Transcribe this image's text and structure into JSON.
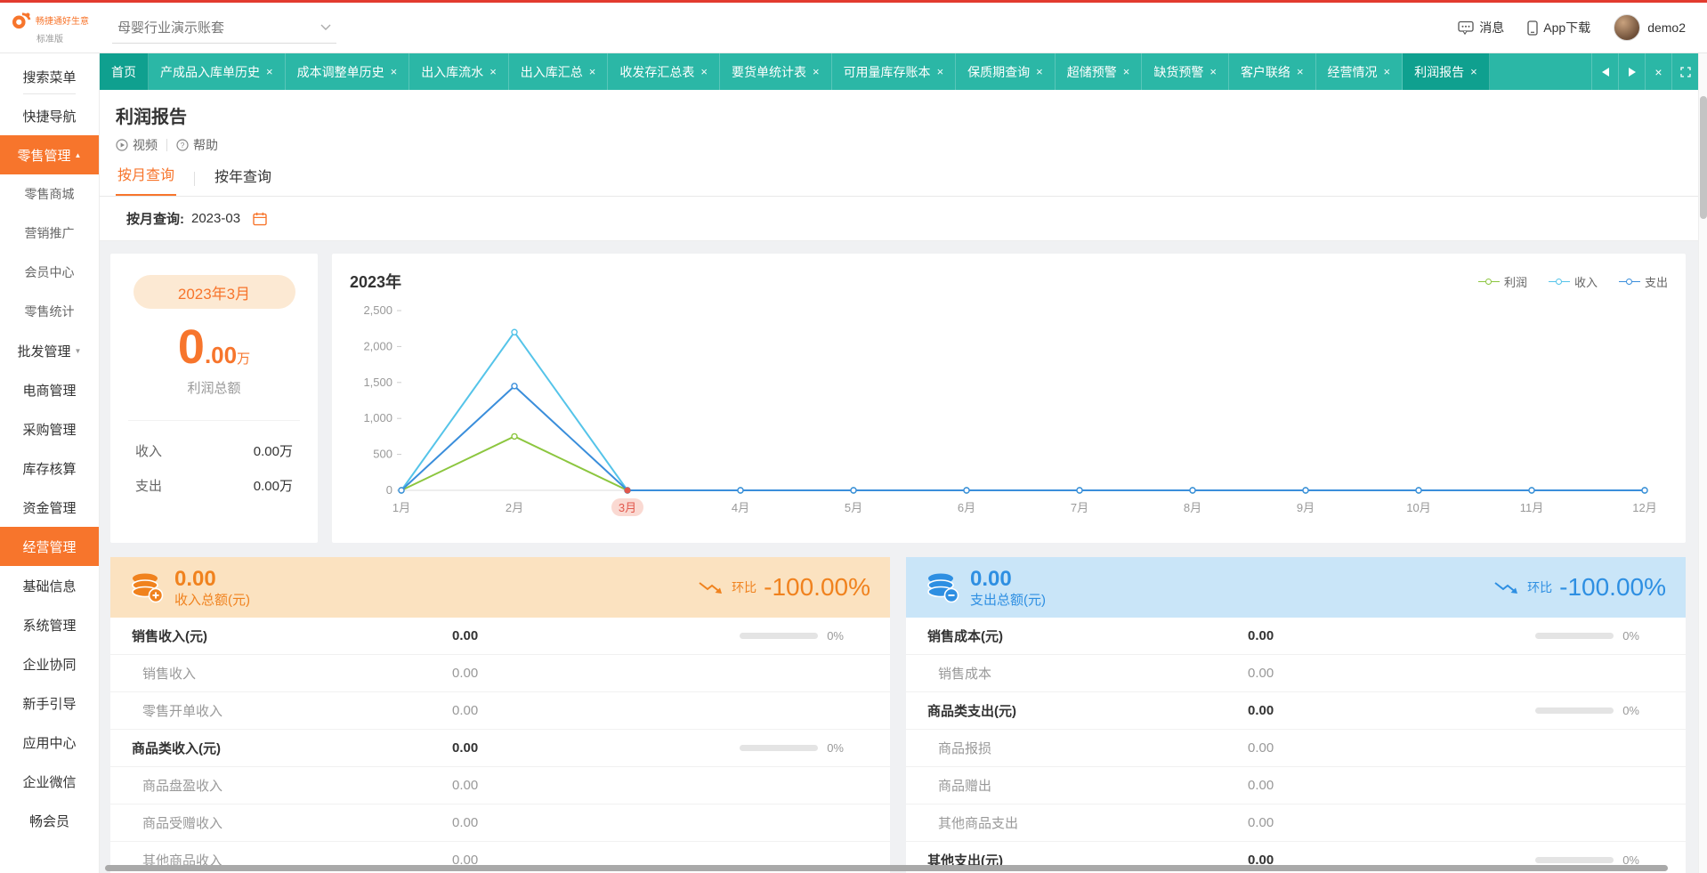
{
  "icons": {
    "close": "×",
    "caret_up": "▲",
    "caret_down": "▼"
  },
  "topbar": {
    "brand": "畅捷通好生意",
    "edition": "标准版",
    "account": "母婴行业演示账套",
    "messages": "消息",
    "app_download": "App下载",
    "username": "demo2"
  },
  "tabbar": {
    "home": "首页",
    "active": "利润报告",
    "tabs": [
      "产成品入库单历史",
      "成本调整单历史",
      "出入库流水",
      "出入库汇总",
      "收发存汇总表",
      "要货单统计表",
      "可用量库存账本",
      "保质期查询",
      "超储预警",
      "缺货预警",
      "客户联络",
      "经营情况",
      "利润报告"
    ]
  },
  "sidebar": {
    "items": [
      {
        "label": "搜索菜单",
        "kind": "top"
      },
      {
        "label": "快捷导航",
        "kind": "top"
      },
      {
        "label": "零售管理",
        "kind": "group-active",
        "arrow": "up"
      },
      {
        "label": "零售商城",
        "kind": "sub"
      },
      {
        "label": "营销推广",
        "kind": "sub"
      },
      {
        "label": "会员中心",
        "kind": "sub"
      },
      {
        "label": "零售统计",
        "kind": "sub"
      },
      {
        "label": "批发管理",
        "kind": "group",
        "arrow": "down"
      },
      {
        "label": "电商管理",
        "kind": "item"
      },
      {
        "label": "采购管理",
        "kind": "item"
      },
      {
        "label": "库存核算",
        "kind": "item"
      },
      {
        "label": "资金管理",
        "kind": "item"
      },
      {
        "label": "经营管理",
        "kind": "active"
      },
      {
        "label": "基础信息",
        "kind": "item"
      },
      {
        "label": "系统管理",
        "kind": "item"
      },
      {
        "label": "企业协同",
        "kind": "item"
      },
      {
        "label": "新手引导",
        "kind": "item"
      },
      {
        "label": "应用中心",
        "kind": "item"
      },
      {
        "label": "企业微信",
        "kind": "item"
      },
      {
        "label": "畅会员",
        "kind": "item"
      }
    ]
  },
  "page": {
    "title": "利润报告",
    "video": "视频",
    "help": "帮助",
    "query_tabs": [
      "按月查询",
      "按年查询"
    ],
    "active_query_tab": "按月查询",
    "filter_label": "按月查询:",
    "filter_value": "2023-03"
  },
  "summary": {
    "period": "2023年3月",
    "value_int": "0",
    "value_dec": ".00",
    "value_unit": "万",
    "value_label": "利润总额",
    "rows": [
      {
        "label": "收入",
        "value": "0.00万"
      },
      {
        "label": "支出",
        "value": "0.00万"
      }
    ]
  },
  "income_panel": {
    "total": "0.00",
    "label": "收入总额(元)",
    "mom_label": "环比",
    "mom_value": "-100.00%",
    "rows": [
      {
        "label": "销售收入(元)",
        "value": "0.00",
        "kind": "section",
        "percent": "0%"
      },
      {
        "label": "销售收入",
        "value": "0.00",
        "kind": "sub"
      },
      {
        "label": "零售开单收入",
        "value": "0.00",
        "kind": "sub"
      },
      {
        "label": "商品类收入(元)",
        "value": "0.00",
        "kind": "section",
        "percent": "0%"
      },
      {
        "label": "商品盘盈收入",
        "value": "0.00",
        "kind": "sub"
      },
      {
        "label": "商品受赠收入",
        "value": "0.00",
        "kind": "sub"
      },
      {
        "label": "其他商品收入",
        "value": "0.00",
        "kind": "sub"
      }
    ]
  },
  "expense_panel": {
    "total": "0.00",
    "label": "支出总额(元)",
    "mom_label": "环比",
    "mom_value": "-100.00%",
    "rows": [
      {
        "label": "销售成本(元)",
        "value": "0.00",
        "kind": "section",
        "percent": "0%"
      },
      {
        "label": "销售成本",
        "value": "0.00",
        "kind": "sub"
      },
      {
        "label": "商品类支出(元)",
        "value": "0.00",
        "kind": "section",
        "percent": "0%"
      },
      {
        "label": "商品报损",
        "value": "0.00",
        "kind": "sub"
      },
      {
        "label": "商品赠出",
        "value": "0.00",
        "kind": "sub"
      },
      {
        "label": "其他商品支出",
        "value": "0.00",
        "kind": "sub"
      },
      {
        "label": "其他支出(元)",
        "value": "0.00",
        "kind": "section",
        "percent": "0%"
      }
    ]
  },
  "chart_data": {
    "type": "line",
    "title": "2023年",
    "x": [
      "1月",
      "2月",
      "3月",
      "4月",
      "5月",
      "6月",
      "7月",
      "8月",
      "9月",
      "10月",
      "11月",
      "12月"
    ],
    "highlight_x": "3月",
    "ylim": [
      0,
      2500
    ],
    "ytick_step": 500,
    "grid": false,
    "legend_position": "top-right",
    "series": [
      {
        "name": "利润",
        "color": "#8CC63F",
        "values": [
          0,
          750,
          0,
          0,
          0,
          0,
          0,
          0,
          0,
          0,
          0,
          0
        ]
      },
      {
        "name": "收入",
        "color": "#55C4E9",
        "values": [
          0,
          2200,
          0,
          0,
          0,
          0,
          0,
          0,
          0,
          0,
          0,
          0
        ]
      },
      {
        "name": "支出",
        "color": "#3A8EDB",
        "values": [
          0,
          1450,
          0,
          0,
          0,
          0,
          0,
          0,
          0,
          0,
          0,
          0
        ]
      }
    ]
  },
  "colors": {
    "accent_orange": "#F7752C",
    "tabbar_teal": "#2BB7A6",
    "tabbar_active": "#0FA08F",
    "income_header_bg": "#FBE2C0",
    "income_text": "#F0821E",
    "expense_header_bg": "#C9E5F8",
    "expense_text": "#2E8FE2",
    "highlight_red": "#E2574C"
  }
}
